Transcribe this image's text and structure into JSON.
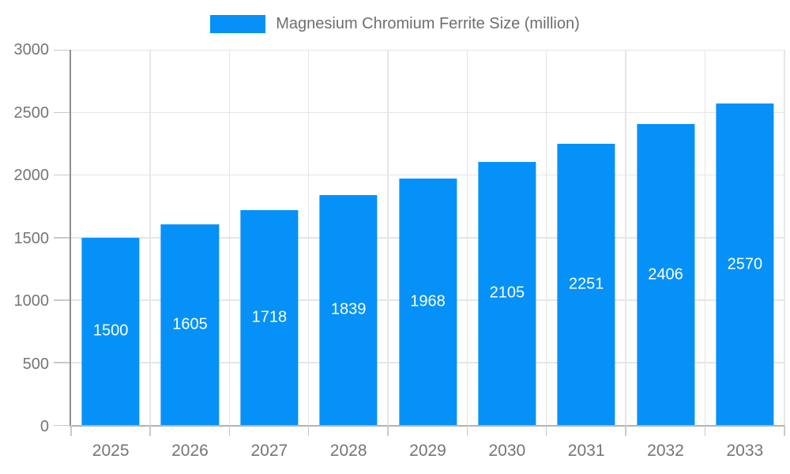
{
  "legend": {
    "label": "Magnesium Chromium Ferrite Size (million)"
  },
  "colors": {
    "bar": "#0591f8",
    "grid": "#e6e6e6",
    "tick": "#c9c9c9",
    "axis_y": "#8f8f8f",
    "axis_x": "#b3b3b3",
    "tick_text": "#757575",
    "legend_text": "#6e6e6e",
    "value_text": "#ffffff",
    "background": "#ffffff"
  },
  "chart_data": {
    "type": "bar",
    "title": "",
    "xlabel": "",
    "ylabel": "",
    "categories": [
      "2025",
      "2026",
      "2027",
      "2028",
      "2029",
      "2030",
      "2031",
      "2032",
      "2033"
    ],
    "series": [
      {
        "name": "Magnesium Chromium Ferrite Size (million)",
        "values": [
          1500,
          1605,
          1718,
          1839,
          1968,
          2105,
          2251,
          2406,
          2570
        ]
      }
    ],
    "ylim": [
      0,
      3000
    ],
    "yticks": [
      0,
      500,
      1000,
      1500,
      2000,
      2500,
      3000
    ],
    "grid": true,
    "legend_position": "top-center",
    "value_labels": "inside-center",
    "bar_ratio": 0.73
  }
}
